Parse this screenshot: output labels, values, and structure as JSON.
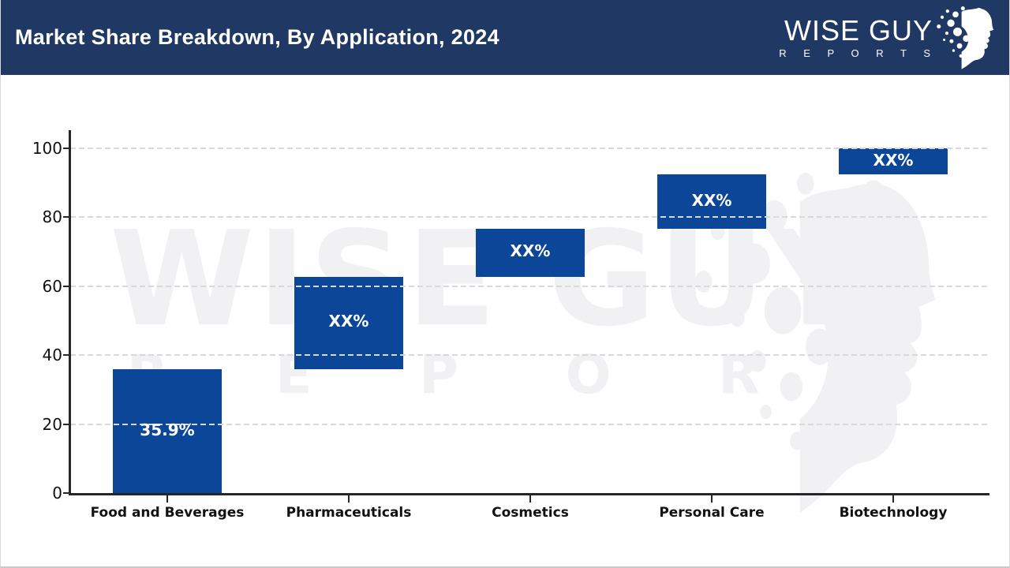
{
  "header": {
    "title": "Market Share Breakdown, By Application, 2024",
    "logo": {
      "wordmark": "WISE GUY",
      "subtext": "R E P O R T S"
    }
  },
  "watermark": {
    "line1": "WISE GUY",
    "line2": "REPORTS"
  },
  "colors": {
    "header_bg": "#203864",
    "bar": "#0b4699",
    "bar_label": "#ffffff",
    "grid": "#d9d9d9",
    "axis": "#262626",
    "watermark": "#f1f1f3"
  },
  "chart_data": {
    "type": "bar",
    "subtype": "waterfall",
    "title": "Market Share Breakdown, By Application, 2024",
    "xlabel": "",
    "ylabel": "",
    "ylim": [
      0,
      105
    ],
    "yticks": [
      0,
      20,
      40,
      60,
      80,
      100
    ],
    "grid": "horizontal-dashed",
    "legend": "none",
    "categories": [
      "Food and Beverages",
      "Pharmaceuticals",
      "Cosmetics",
      "Personal Care",
      "Biotechnology"
    ],
    "segments": [
      {
        "category": "Food and Beverages",
        "start": 0,
        "end": 35.9,
        "value": 35.9,
        "label": "35.9%"
      },
      {
        "category": "Pharmaceuticals",
        "start": 35.9,
        "end": 62.8,
        "value": 26.9,
        "label": "XX%"
      },
      {
        "category": "Cosmetics",
        "start": 62.8,
        "end": 76.6,
        "value": 13.8,
        "label": "XX%"
      },
      {
        "category": "Personal Care",
        "start": 76.6,
        "end": 92.4,
        "value": 15.8,
        "label": "XX%"
      },
      {
        "category": "Biotechnology",
        "start": 92.4,
        "end": 100,
        "value": 7.6,
        "label": "XX%"
      }
    ]
  }
}
